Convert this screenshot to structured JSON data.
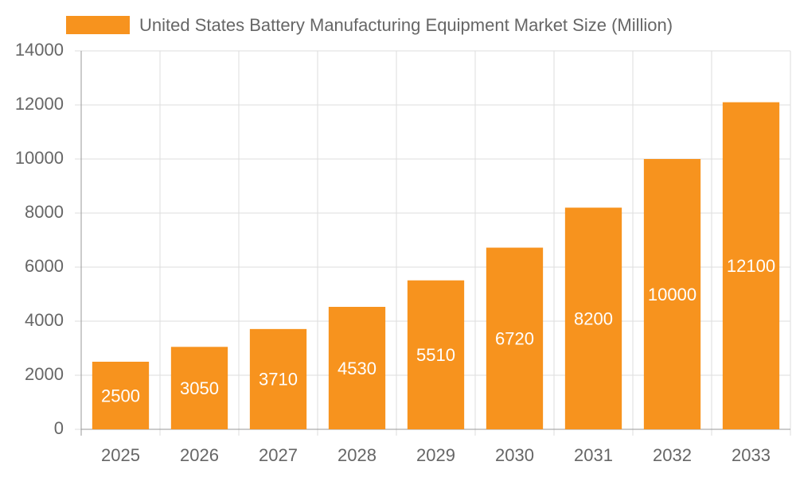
{
  "chart_data": {
    "type": "bar",
    "categories": [
      "2025",
      "2026",
      "2027",
      "2028",
      "2029",
      "2030",
      "2031",
      "2032",
      "2033"
    ],
    "series": [
      {
        "name": "United States Battery Manufacturing Equipment Market Size (Million)",
        "color": "#f7931e",
        "values": [
          2500,
          3050,
          3710,
          4530,
          5510,
          6720,
          8200,
          10000,
          12100
        ]
      }
    ],
    "ylim": [
      0,
      14000
    ],
    "yticks": [
      0,
      2000,
      4000,
      6000,
      8000,
      10000,
      12000,
      14000
    ],
    "grid": true,
    "legend": "top",
    "data_labels": true
  }
}
